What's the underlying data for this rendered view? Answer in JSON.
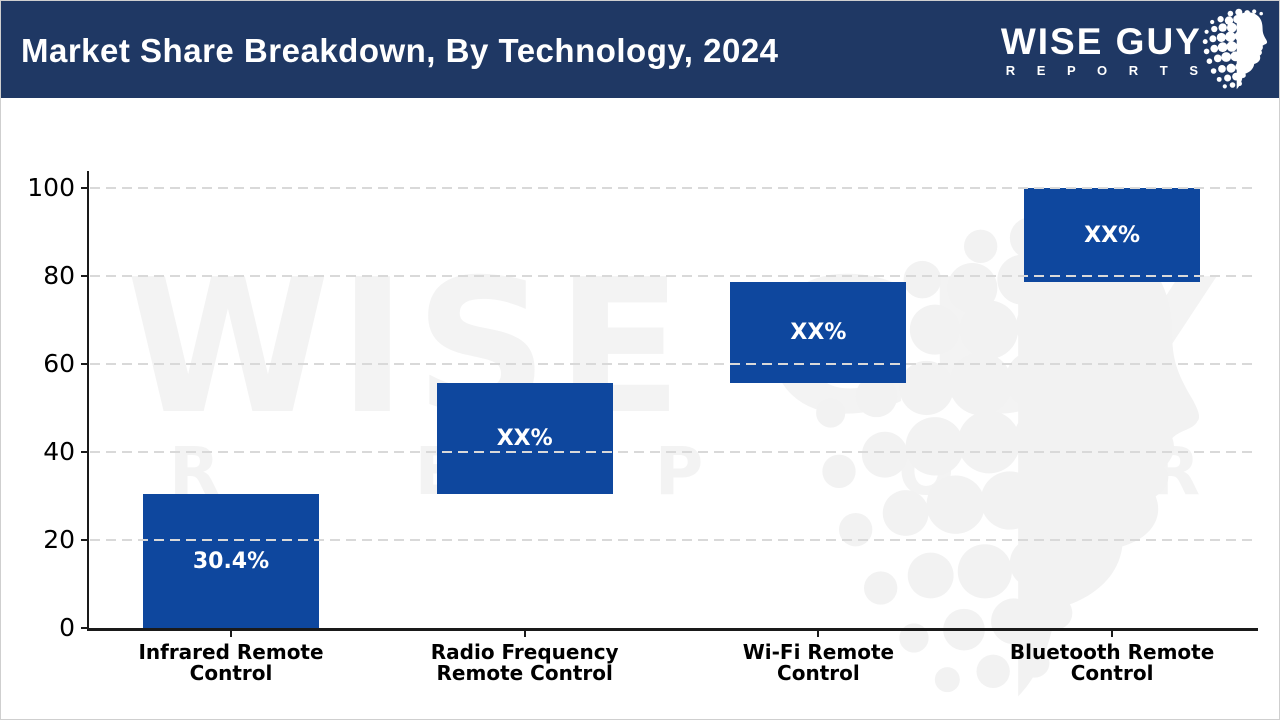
{
  "header": {
    "title": "Market Share Breakdown, By Technology, 2024",
    "logo": {
      "word": "WISE GUY",
      "sub": "R E P O R T S"
    }
  },
  "watermark": {
    "word": "WISE GUY",
    "sub": "R E P O R T S"
  },
  "colors": {
    "header_bg": "#1f3864",
    "bar": "#0e479e",
    "gridline": "#d9d9d9",
    "axis": "#1a1a1a",
    "bar_label": "#ffffff",
    "watermark_face": "#f2f2f2",
    "watermark_text": "#f3f3f3"
  },
  "chart_data": {
    "type": "bar",
    "subtype": "waterfall",
    "title": "Market Share Breakdown, By Technology, 2024",
    "categories": [
      "Infrared Remote Control",
      "Radio Frequency Remote Control",
      "Wi-Fi Remote Control",
      "Bluetooth Remote Control"
    ],
    "category_label_lines": [
      [
        "Infrared Remote",
        "Control"
      ],
      [
        "Radio Frequency",
        "Remote Control"
      ],
      [
        "Wi-Fi Remote",
        "Control"
      ],
      [
        "Bluetooth Remote",
        "Control"
      ]
    ],
    "bars": [
      {
        "category": "Infrared Remote Control",
        "start": 0,
        "end": 30.4,
        "label": "30.4%"
      },
      {
        "category": "Radio Frequency Remote Control",
        "start": 30.4,
        "end": 55.7,
        "label": "XX%"
      },
      {
        "category": "Wi-Fi Remote Control",
        "start": 55.7,
        "end": 78.6,
        "label": "XX%"
      },
      {
        "category": "Bluetooth Remote Control",
        "start": 78.6,
        "end": 100,
        "label": "XX%"
      }
    ],
    "xlabel": "",
    "ylabel": "",
    "ylim": [
      0,
      100
    ],
    "yticks": [
      0,
      20,
      40,
      60,
      80,
      100
    ],
    "grid": "horizontal-dashed",
    "legend": null
  }
}
